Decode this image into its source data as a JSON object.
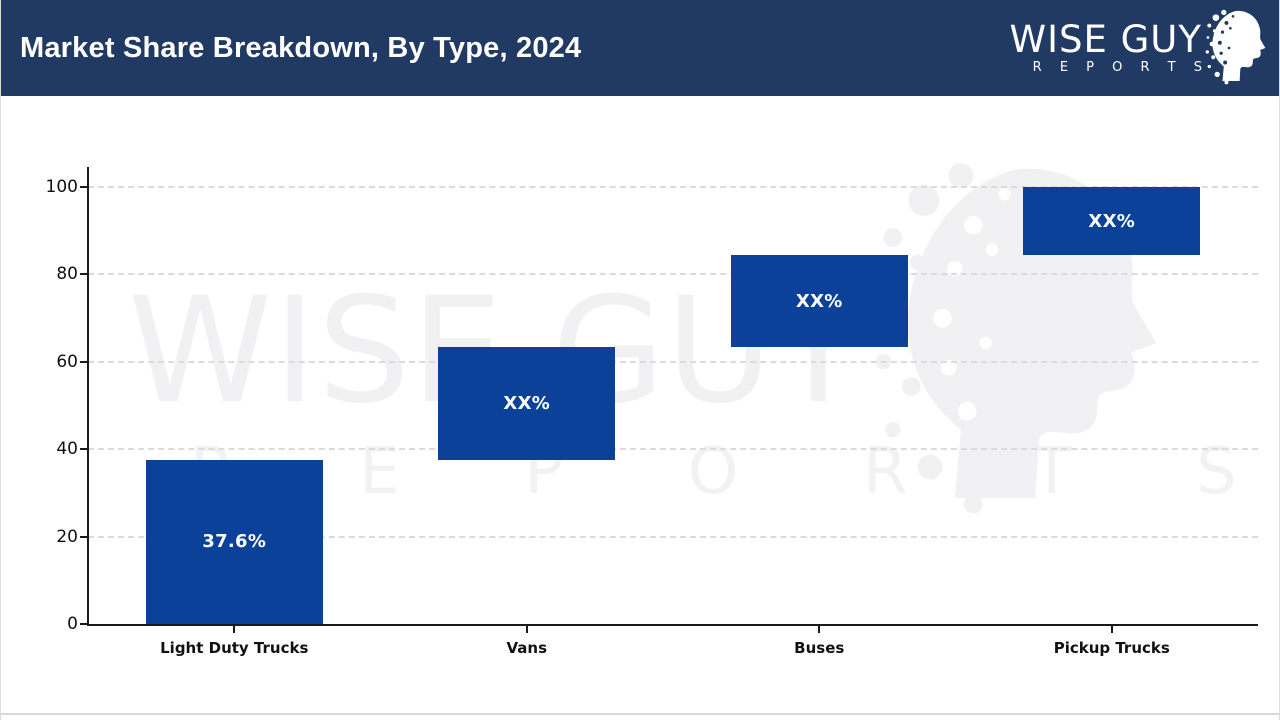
{
  "header": {
    "title": "Market Share Breakdown, By Type, 2024",
    "logo": {
      "line1": "WISE GUY",
      "line2": "R E P O R T S"
    }
  },
  "watermark": {
    "line1": "WISE GUY",
    "line2": "REPORTS"
  },
  "colors": {
    "header_bg": "#213a63",
    "bar_blue": "#0b4199",
    "grid_gray": "#dbdbdb",
    "watermark_gray": "#f1f1f3"
  },
  "chart_data": {
    "type": "bar",
    "subtype": "floating-waterfall",
    "title": "Market Share Breakdown, By Type, 2024",
    "xlabel": "",
    "ylabel": "",
    "ylim": [
      0,
      105
    ],
    "y_ticks": [
      "0",
      "20",
      "40",
      "60",
      "80",
      "100"
    ],
    "grid": "horizontal-dashed",
    "legend": "none",
    "categories": [
      "Light Duty Trucks",
      "Vans",
      "Buses",
      "Pickup Trucks"
    ],
    "bars": [
      {
        "category": "Light Duty Trucks",
        "start": 0,
        "end": 37.6,
        "label": "37.6%"
      },
      {
        "category": "Vans",
        "start": 37.6,
        "end": 63.4,
        "label": "XX%"
      },
      {
        "category": "Buses",
        "start": 63.4,
        "end": 84.4,
        "label": "XX%"
      },
      {
        "category": "Pickup Trucks",
        "start": 84.4,
        "end": 100,
        "label": "XX%"
      }
    ]
  }
}
